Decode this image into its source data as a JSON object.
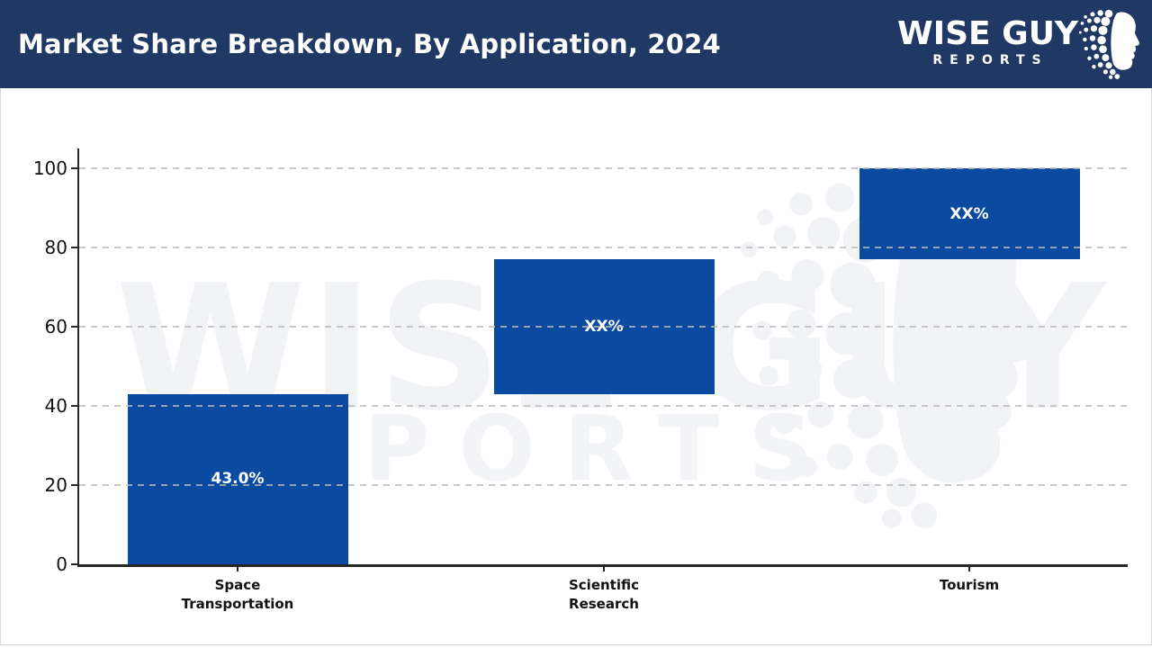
{
  "header": {
    "title": "Market Share Breakdown, By Application, 2024",
    "bg_color": "#1f3864",
    "logo": {
      "line1": "WISE GUY",
      "line2": "REPORTS"
    }
  },
  "watermark": {
    "line1": "WISE GUY",
    "line2": "REPORTS"
  },
  "chart_data": {
    "type": "bar",
    "subtype": "waterfall",
    "title": "Market Share Breakdown, By Application, 2024",
    "xlabel": "",
    "ylabel": "",
    "categories": [
      "Space Transportation",
      "Scientific Research",
      "Tourism"
    ],
    "bars": [
      {
        "category": "Space Transportation",
        "category_lines": [
          "Space",
          "Transportation"
        ],
        "base": 0,
        "top": 43,
        "label": "43.0%"
      },
      {
        "category": "Scientific Research",
        "category_lines": [
          "Scientific",
          "Research"
        ],
        "base": 43,
        "top": 77,
        "label": "XX%"
      },
      {
        "category": "Tourism",
        "category_lines": [
          "Tourism"
        ],
        "base": 77,
        "top": 100,
        "label": "XX%"
      }
    ],
    "yticks": [
      0,
      20,
      40,
      60,
      80,
      100
    ],
    "ylim": [
      0,
      105
    ],
    "grid": "horizontal dashed, drawn above bars",
    "legend": "none",
    "bar_color": "#0a4aa0",
    "bar_label_color": "#ffffff",
    "axis_color": "#262626"
  }
}
